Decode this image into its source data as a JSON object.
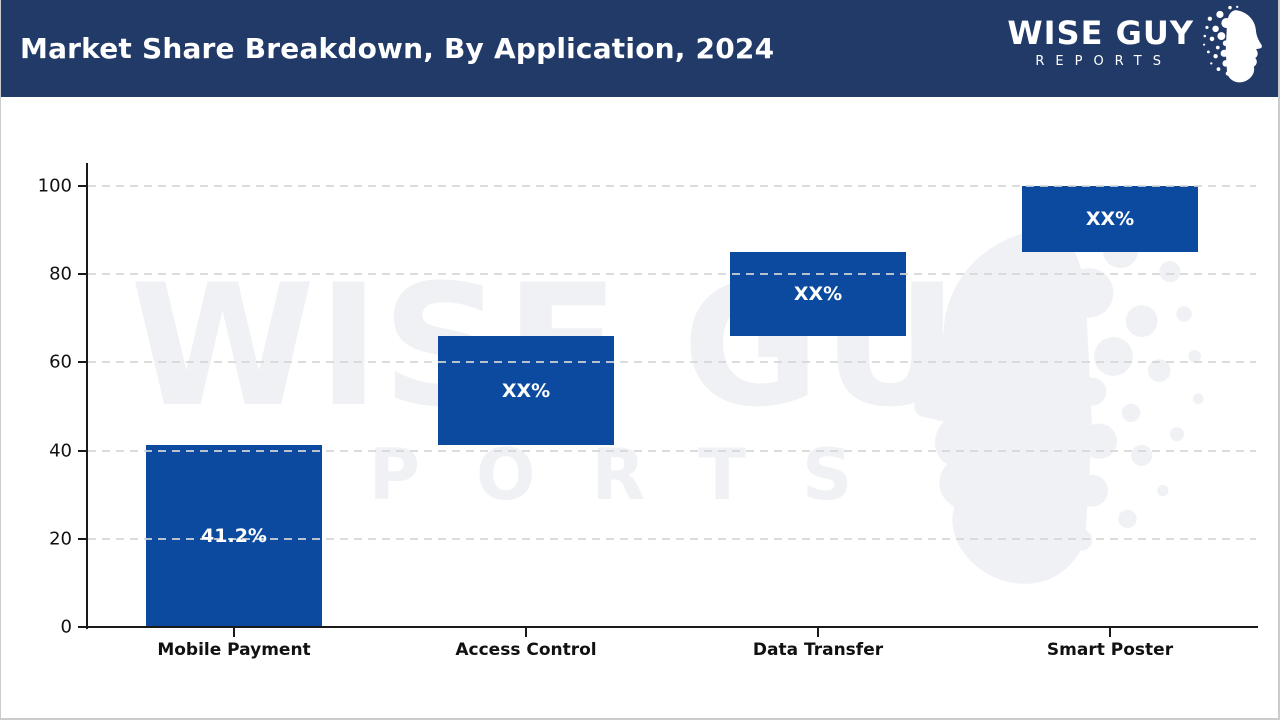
{
  "header": {
    "title": "Market Share Breakdown, By Application, 2024",
    "logo": {
      "line1": "WISE GUY",
      "line2": "REPORTS"
    }
  },
  "watermark": {
    "line1": "WISE GUY",
    "line2": "REPORTS"
  },
  "colors": {
    "header_bg": "#213A68",
    "bar": "#0B4A9F",
    "bar_label": "#ffffff",
    "axis": "#1a1a1a",
    "grid": "#d6d6d6",
    "watermark": "#f0f1f4"
  },
  "chart_data": {
    "type": "bar",
    "subtype": "floating-waterfall",
    "title": "Market Share Breakdown, By Application, 2024",
    "xlabel": "",
    "ylabel": "",
    "ylim": [
      0,
      100
    ],
    "y_ticks": [
      0,
      20,
      40,
      60,
      80,
      100
    ],
    "grid": "horizontal-dashed",
    "legend": "none",
    "categories": [
      "Mobile Payment",
      "Access Control",
      "Data Transfer",
      "Smart Poster"
    ],
    "bars": [
      {
        "category": "Mobile Payment",
        "start": 0,
        "end": 41.2,
        "label": "41.2%"
      },
      {
        "category": "Access Control",
        "start": 41.2,
        "end": 66,
        "label": "XX%"
      },
      {
        "category": "Data Transfer",
        "start": 66,
        "end": 85,
        "label": "XX%"
      },
      {
        "category": "Smart Poster",
        "start": 85,
        "end": 100,
        "label": "XX%"
      }
    ]
  }
}
